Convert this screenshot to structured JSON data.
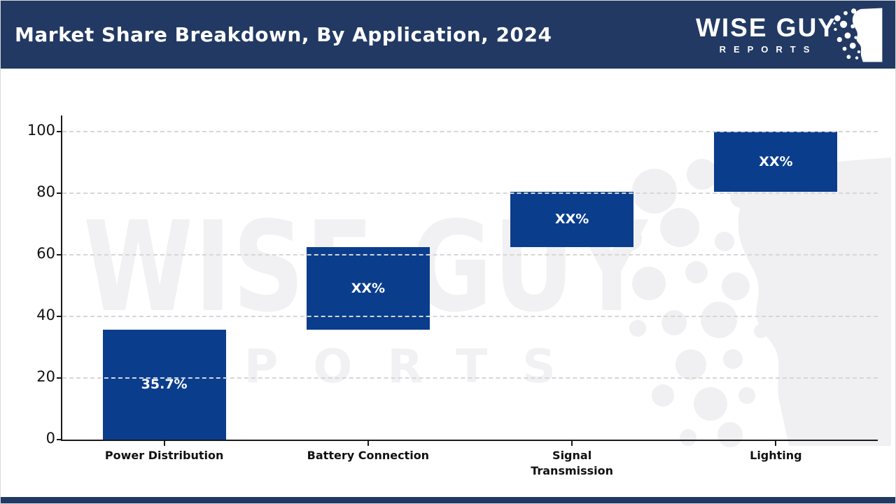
{
  "header": {
    "title": "Market Share Breakdown, By Application, 2024",
    "bg_color": "#213963",
    "logo": {
      "brand": "WISE GUY",
      "sub": "REPORTS"
    }
  },
  "watermark": {
    "brand": "WISE GUY",
    "sub": "REPORTS"
  },
  "chart_data": {
    "type": "bar",
    "subtype": "waterfall-stacked-segments",
    "title": "Market Share Breakdown, By Application, 2024",
    "categories": [
      "Power Distribution",
      "Battery Connection",
      "Signal Transmission",
      "Lighting"
    ],
    "segments": [
      {
        "category": "Power Distribution",
        "lines": [
          "Power Distribution"
        ],
        "start": 0,
        "end": 35.7,
        "label": "35.7%"
      },
      {
        "category": "Battery Connection",
        "lines": [
          "Battery Connection"
        ],
        "start": 35.7,
        "end": 62.5,
        "label": "XX%"
      },
      {
        "category": "Signal Transmission",
        "lines": [
          "Signal",
          "Transmission"
        ],
        "start": 62.5,
        "end": 80.5,
        "label": "XX%"
      },
      {
        "category": "Lighting",
        "lines": [
          "Lighting"
        ],
        "start": 80.5,
        "end": 100,
        "label": "XX%"
      }
    ],
    "y_ticks": [
      0,
      20,
      40,
      60,
      80,
      100
    ],
    "ylim": [
      0,
      105
    ],
    "xlabel": "",
    "ylabel": "",
    "legend": "none",
    "grid": "horizontal-dashed",
    "bar_color": "#0b3d8d",
    "grid_color": "#d6d6d6",
    "axis_color": "#1a1a1a",
    "value_label_color": "#ffffff"
  }
}
